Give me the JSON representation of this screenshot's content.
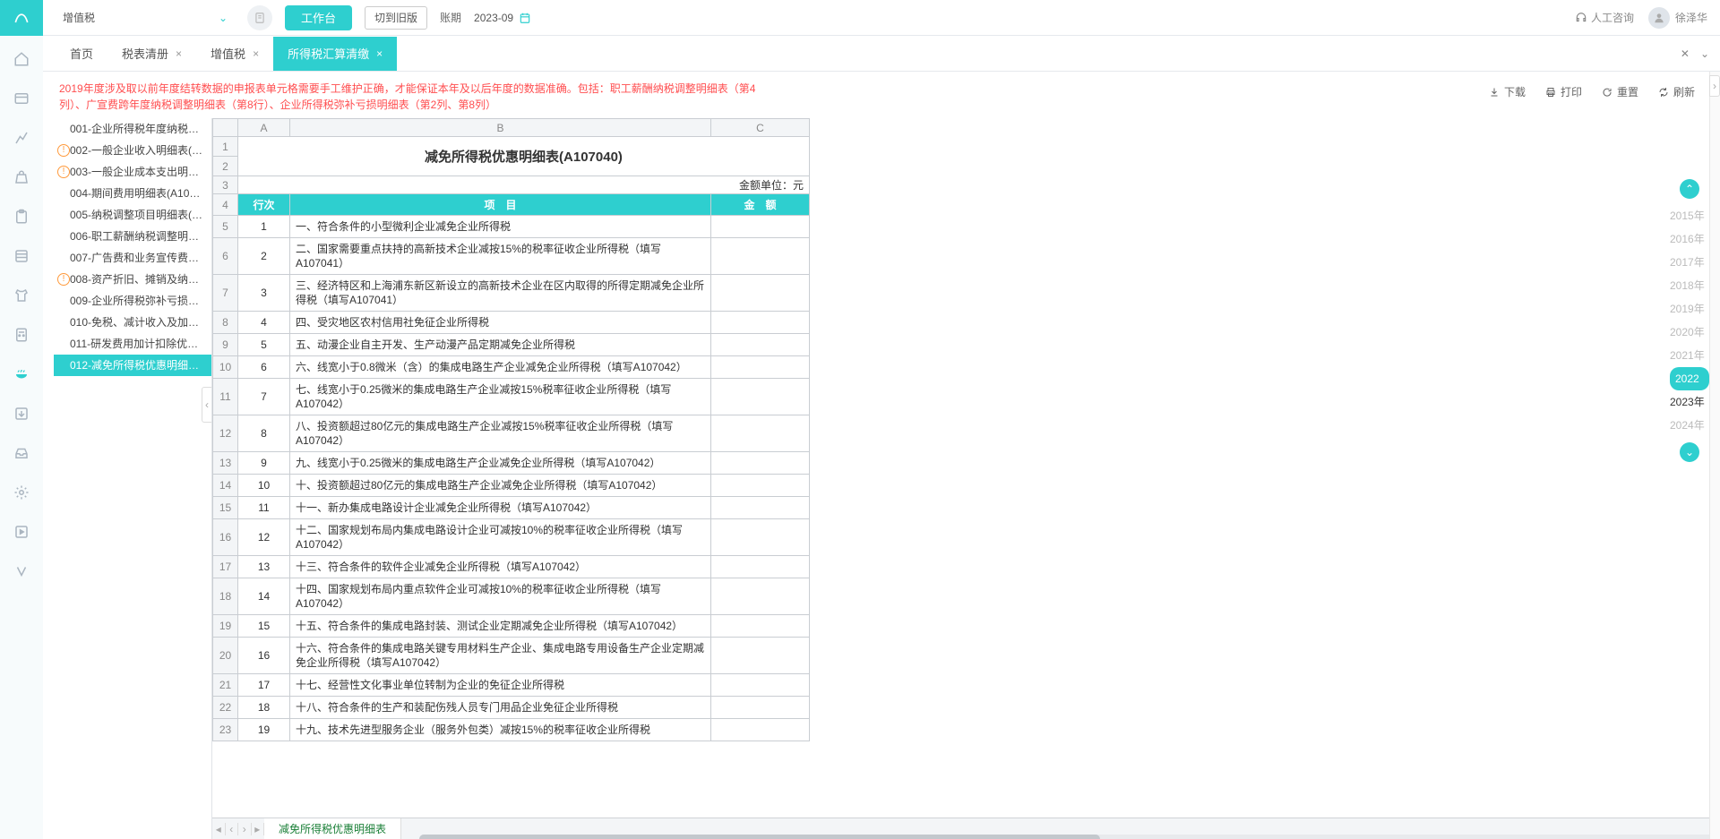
{
  "topbar": {
    "company": "增值税",
    "workbench": "工作台",
    "switch_old": "切到旧版",
    "period_label": "账期",
    "period_value": "2023-09",
    "consult": "人工咨询",
    "user_name": "徐泽华"
  },
  "tabs": [
    {
      "label": "首页",
      "closable": false,
      "active": false
    },
    {
      "label": "税表清册",
      "closable": true,
      "active": false
    },
    {
      "label": "增值税",
      "closable": true,
      "active": false
    },
    {
      "label": "所得税汇算清缴",
      "closable": true,
      "active": true
    }
  ],
  "notice": "2019年度涉及取以前年度结转数据的申报表单元格需要手工维护正确，才能保证本年及以后年度的数据准确。包括：职工薪酬纳税调整明细表（第4列）、广宣费跨年度纳税调整明细表（第8行）、企业所得税弥补亏损明细表（第2列、第8列）",
  "toolbar": {
    "download": "下载",
    "print": "打印",
    "reset": "重置",
    "refresh": "刷新"
  },
  "tree": [
    {
      "label": "001-企业所得税年度纳税申...",
      "warn": false
    },
    {
      "label": "002-一般企业收入明细表(A1...",
      "warn": true
    },
    {
      "label": "003-一般企业成本支出明细...",
      "warn": true
    },
    {
      "label": "004-期间费用明细表(A1040...",
      "warn": false
    },
    {
      "label": "005-纳税调整项目明细表(A1...",
      "warn": false
    },
    {
      "label": "006-职工薪酬纳税调整明细...",
      "warn": false
    },
    {
      "label": "007-广告费和业务宣传费跨...",
      "warn": false
    },
    {
      "label": "008-资产折旧、摊销及纳税...",
      "warn": true
    },
    {
      "label": "009-企业所得税弥补亏损明...",
      "warn": false
    },
    {
      "label": "010-免税、减计收入及加计...",
      "warn": false
    },
    {
      "label": "011-研发费用加计扣除优惠...",
      "warn": false
    },
    {
      "label": "012-减免所得税优惠明细表(...",
      "warn": false,
      "active": true
    }
  ],
  "sheet": {
    "title": "减免所得税优惠明细表(A107040)",
    "unit": "金额单位：元",
    "col_headers": {
      "A": "A",
      "B": "B",
      "C": "C"
    },
    "header_row": {
      "seq": "行次",
      "item": "项　目",
      "amount": "金　额"
    },
    "rows": [
      {
        "n": "1",
        "item": "一、符合条件的小型微利企业减免企业所得税"
      },
      {
        "n": "2",
        "item": "二、国家需要重点扶持的高新技术企业减按15%的税率征收企业所得税（填写A107041）"
      },
      {
        "n": "3",
        "item": "三、经济特区和上海浦东新区新设立的高新技术企业在区内取得的所得定期减免企业所得税（填写A107041）"
      },
      {
        "n": "4",
        "item": "四、受灾地区农村信用社免征企业所得税"
      },
      {
        "n": "5",
        "item": "五、动漫企业自主开发、生产动漫产品定期减免企业所得税"
      },
      {
        "n": "6",
        "item": "六、线宽小于0.8微米（含）的集成电路生产企业减免企业所得税（填写A107042）"
      },
      {
        "n": "7",
        "item": "七、线宽小于0.25微米的集成电路生产企业减按15%税率征收企业所得税（填写A107042）"
      },
      {
        "n": "8",
        "item": "八、投资额超过80亿元的集成电路生产企业减按15%税率征收企业所得税（填写A107042）"
      },
      {
        "n": "9",
        "item": "九、线宽小于0.25微米的集成电路生产企业减免企业所得税（填写A107042）"
      },
      {
        "n": "10",
        "item": "十、投资额超过80亿元的集成电路生产企业减免企业所得税（填写A107042）"
      },
      {
        "n": "11",
        "item": "十一、新办集成电路设计企业减免企业所得税（填写A107042）"
      },
      {
        "n": "12",
        "item": "十二、国家规划布局内集成电路设计企业可减按10%的税率征收企业所得税（填写A107042）"
      },
      {
        "n": "13",
        "item": "十三、符合条件的软件企业减免企业所得税（填写A107042）"
      },
      {
        "n": "14",
        "item": "十四、国家规划布局内重点软件企业可减按10%的税率征收企业所得税（填写A107042）"
      },
      {
        "n": "15",
        "item": "十五、符合条件的集成电路封装、测试企业定期减免企业所得税（填写A107042）"
      },
      {
        "n": "16",
        "item": "十六、符合条件的集成电路关键专用材料生产企业、集成电路专用设备生产企业定期减免企业所得税（填写A107042）"
      },
      {
        "n": "17",
        "item": "十七、经营性文化事业单位转制为企业的免征企业所得税"
      },
      {
        "n": "18",
        "item": "十八、符合条件的生产和装配伤残人员专门用品企业免征企业所得税"
      },
      {
        "n": "19",
        "item": "十九、技术先进型服务企业（服务外包类）减按15%的税率征收企业所得税"
      }
    ],
    "tab_name": "减免所得税优惠明细表"
  },
  "years": [
    "2015年",
    "2016年",
    "2017年",
    "2018年",
    "2019年",
    "2020年",
    "2021年",
    "2022年",
    "2023年",
    "2024年"
  ],
  "year_active": "2022年",
  "year_dark": "2023年"
}
